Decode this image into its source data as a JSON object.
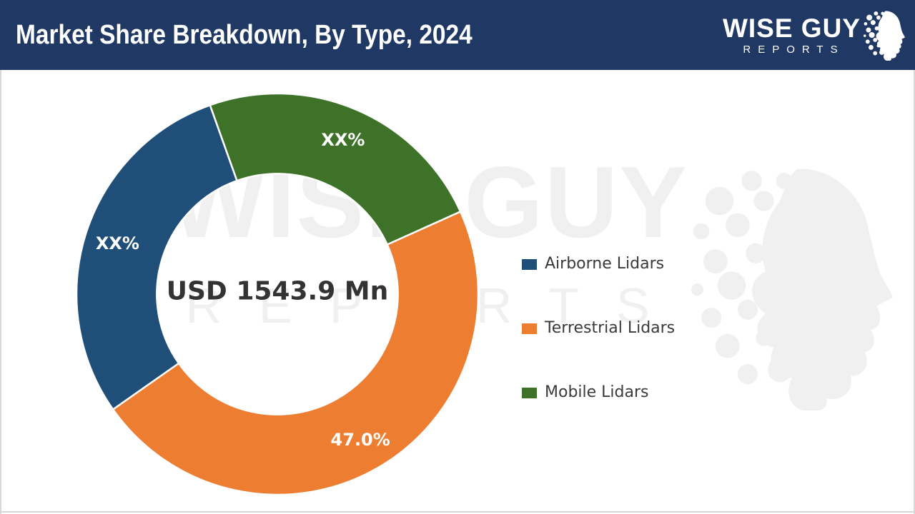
{
  "header": {
    "title": "Market Share Breakdown, By Type, 2024",
    "logo": {
      "line1": "WISE GUY",
      "line2": "REPORTS"
    }
  },
  "chart_data": {
    "type": "donut",
    "title": "Market Share Breakdown, By Type, 2024",
    "center_label": "USD 1543.9 Mn",
    "segments": [
      {
        "name": "Airborne Lidars",
        "value_pct": 29.3,
        "display_label": "XX%",
        "color": "#1F4E79"
      },
      {
        "name": "Terrestrial Lidars",
        "value_pct": 47.0,
        "display_label": "47.0%",
        "color": "#ED7D31"
      },
      {
        "name": "Mobile Lidars",
        "value_pct": 23.7,
        "display_label": "XX%",
        "color": "#3F7229"
      }
    ],
    "clockwise_order": [
      "Mobile Lidars",
      "Terrestrial Lidars",
      "Airborne Lidars"
    ],
    "start_angle_deg": -19.6,
    "inner_radius_ratio": 0.6,
    "separator_color": "#ffffff",
    "label_color": "#ffffff",
    "legend_position": "right",
    "grid": false
  },
  "legend": {
    "items": [
      {
        "label": "Airborne Lidars",
        "color": "#1F4E79"
      },
      {
        "label": "Terrestrial Lidars",
        "color": "#ED7D31"
      },
      {
        "label": "Mobile Lidars",
        "color": "#3F7229"
      }
    ]
  },
  "watermark": {
    "line1": "WISE GUY",
    "line2": "REPORTS"
  },
  "colors": {
    "header_bg": "#1F3864",
    "border_rule": "#d8d8d8",
    "center_text": "#333333",
    "legend_text": "#3a3a3a",
    "watermark": "#f0f0f0"
  }
}
